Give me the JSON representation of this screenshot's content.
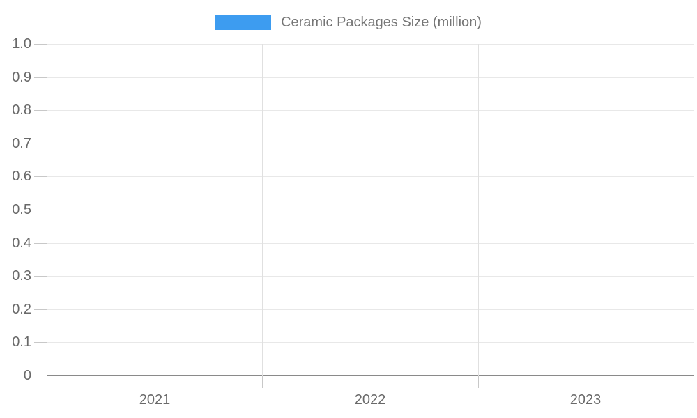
{
  "legend": {
    "position": "top",
    "items": [
      {
        "label": "Ceramic Packages Size (million)",
        "color": "#3D9CF0"
      }
    ]
  },
  "chart_data": {
    "type": "bar",
    "title": "Ceramic Packages Size (million)",
    "categories": [
      "2021",
      "2022",
      "2023"
    ],
    "series": [
      {
        "name": "Ceramic Packages Size (million)",
        "color": "#3D9CF0",
        "values": [
          null,
          null,
          null
        ]
      }
    ],
    "xlabel": "",
    "ylabel": "",
    "ylim": [
      0,
      1.0
    ],
    "ytick_step": 0.1,
    "ytick_labels": [
      "0",
      "0.1",
      "0.2",
      "0.3",
      "0.4",
      "0.5",
      "0.6",
      "0.7",
      "0.8",
      "0.9",
      "1.0"
    ],
    "grid": true,
    "legend_position": "top",
    "no_visible_data": true
  },
  "colors": {
    "series_blue": "#3D9CF0",
    "legend_text": "#757575",
    "tick_label_gray": "#696969",
    "gridline_h": "#E8E8E8",
    "gridline_v": "#E0E0E0",
    "axis_line": "#9A9A9A",
    "baseline": "#8A8A8A",
    "tick": "#C8C8C8",
    "background": "#FFFFFF"
  }
}
